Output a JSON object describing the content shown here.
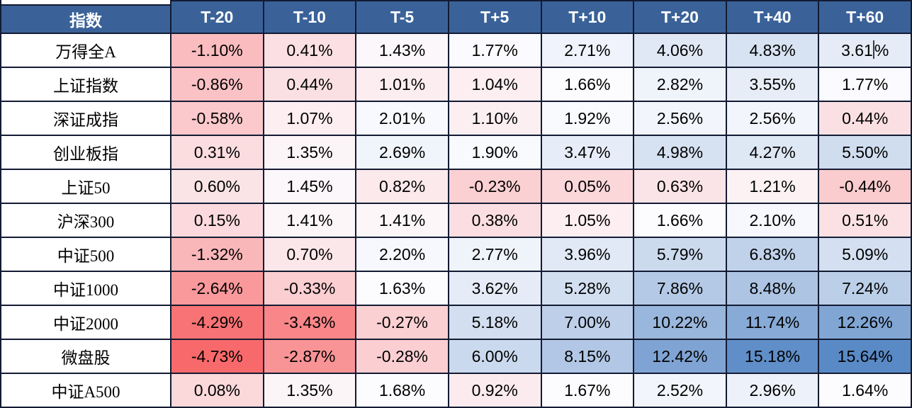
{
  "chart_data": {
    "type": "heatmap",
    "title": "",
    "corner_header": "指数",
    "columns": [
      "T-20",
      "T-10",
      "T-5",
      "T+5",
      "T+10",
      "T+20",
      "T+40",
      "T+60"
    ],
    "row_labels": [
      "万得全A",
      "上证指数",
      "深证成指",
      "创业板指",
      "上证50",
      "沪深300",
      "中证500",
      "中证1000",
      "中证2000",
      "微盘股",
      "中证A500"
    ],
    "values": [
      [
        -1.1,
        0.41,
        1.43,
        1.77,
        2.71,
        4.06,
        4.83,
        3.61
      ],
      [
        -0.86,
        0.44,
        1.01,
        1.04,
        1.66,
        2.82,
        3.55,
        1.77
      ],
      [
        -0.58,
        1.07,
        2.01,
        1.1,
        1.92,
        2.56,
        2.56,
        0.44
      ],
      [
        0.31,
        1.35,
        2.69,
        1.9,
        3.47,
        4.98,
        4.27,
        5.5
      ],
      [
        0.6,
        1.45,
        0.82,
        -0.23,
        0.05,
        0.63,
        1.21,
        -0.44
      ],
      [
        0.15,
        1.41,
        1.41,
        0.38,
        1.05,
        1.66,
        2.1,
        0.51
      ],
      [
        -1.32,
        0.7,
        2.2,
        2.77,
        3.96,
        5.79,
        6.83,
        5.09
      ],
      [
        -2.64,
        -0.33,
        1.63,
        3.62,
        5.28,
        7.86,
        8.48,
        7.24
      ],
      [
        -4.29,
        -3.43,
        -0.27,
        5.18,
        7.0,
        10.22,
        11.74,
        12.26
      ],
      [
        -4.73,
        -2.87,
        -0.28,
        6.0,
        8.15,
        12.42,
        15.18,
        15.64
      ],
      [
        0.08,
        1.35,
        1.68,
        0.92,
        1.67,
        2.52,
        2.96,
        1.64
      ]
    ],
    "unit": "%",
    "value_decimals": 2,
    "color_scale": {
      "min_color": "#F8696B",
      "mid_color": "#FCFCFF",
      "max_color": "#5A8AC6",
      "midpoint": "median"
    },
    "legend_position": "none",
    "grid": true
  },
  "colors": {
    "header_bg": "#3A6299",
    "header_text": "#FFFFFF",
    "border": "#131B33",
    "label_bg": "#FFFFFF",
    "cell_text": "#000000",
    "caret": "#3C3C3C",
    "page_bg": "#FFFFFF"
  },
  "ui": {
    "text_cursor": {
      "row": 0,
      "col": 7,
      "before_char": "%"
    }
  }
}
